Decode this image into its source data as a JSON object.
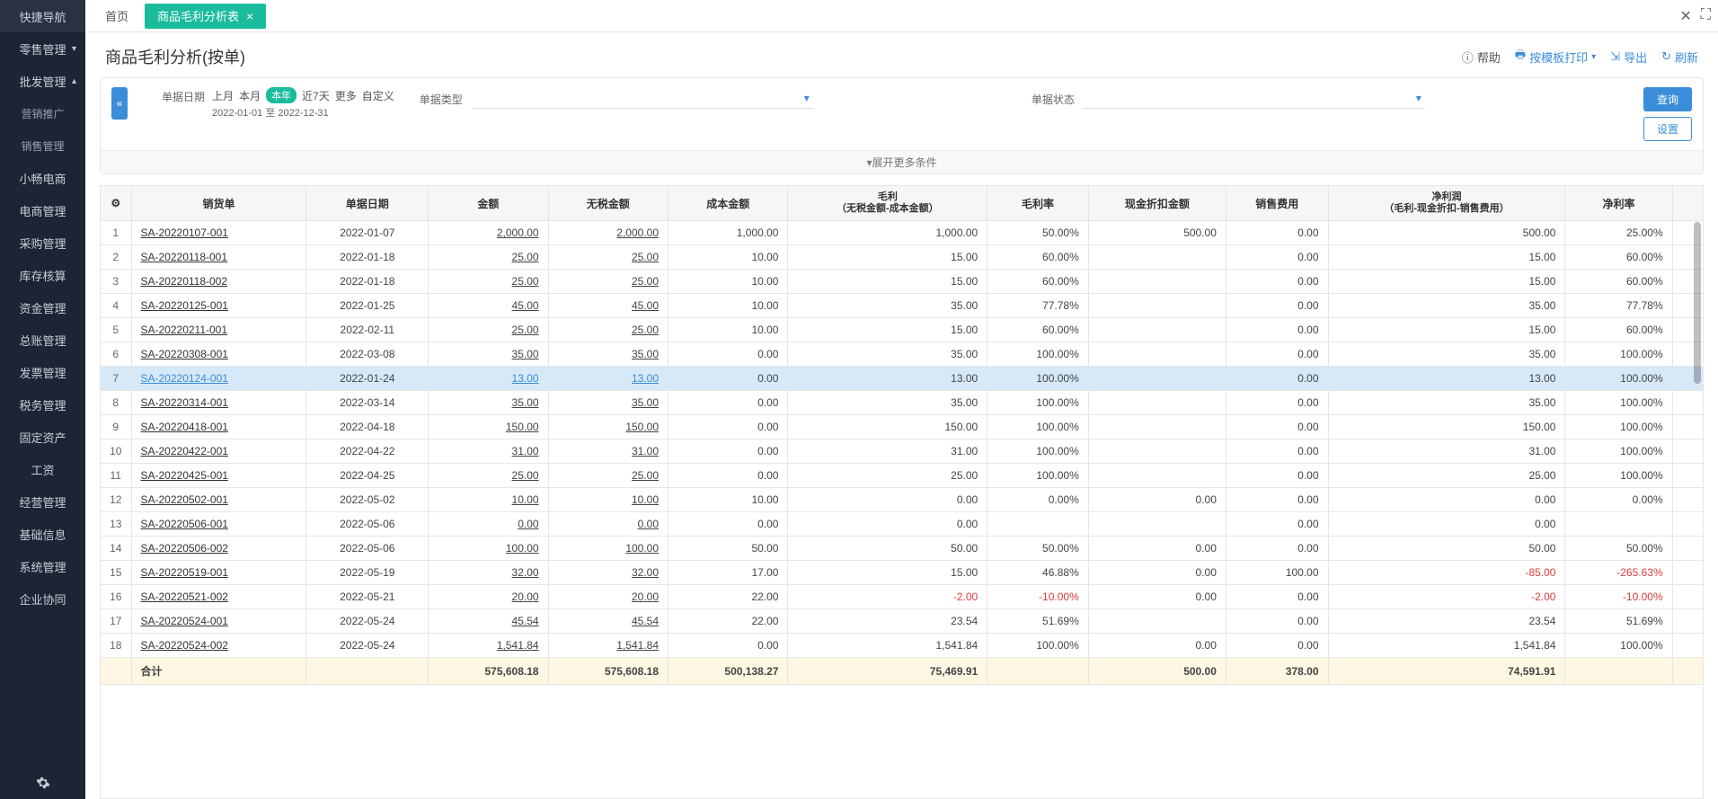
{
  "sidebar": {
    "items": [
      {
        "label": "快捷导航",
        "arrow": false
      },
      {
        "label": "零售管理",
        "arrow": "down"
      },
      {
        "label": "批发管理",
        "arrow": "up",
        "expanded": true,
        "sub": [
          "营销推广",
          "销售管理"
        ]
      },
      {
        "label": "小畅电商",
        "arrow": false
      },
      {
        "label": "电商管理",
        "arrow": false
      },
      {
        "label": "采购管理",
        "arrow": false
      },
      {
        "label": "库存核算",
        "arrow": false
      },
      {
        "label": "资金管理",
        "arrow": false
      },
      {
        "label": "总账管理",
        "arrow": false
      },
      {
        "label": "发票管理",
        "arrow": false
      },
      {
        "label": "税务管理",
        "arrow": false
      },
      {
        "label": "固定资产",
        "arrow": false
      },
      {
        "label": "工资",
        "arrow": false
      },
      {
        "label": "经营管理",
        "arrow": false
      },
      {
        "label": "基础信息",
        "arrow": false
      },
      {
        "label": "系统管理",
        "arrow": false
      },
      {
        "label": "企业协同",
        "arrow": false
      }
    ]
  },
  "tabs": {
    "home": "首页",
    "active": "商品毛利分析表"
  },
  "pageTitle": "商品毛利分析(按单)",
  "actions": {
    "help": "帮助",
    "print": "按模板打印",
    "export": "导出",
    "refresh": "刷新"
  },
  "filters": {
    "dateLabel": "单据日期",
    "dateBtns": [
      "上月",
      "本月",
      "本年",
      "近7天",
      "更多",
      "自定义"
    ],
    "activeBtn": "本年",
    "dateRange": "2022-01-01 至 2022-12-31",
    "typeLabel": "单据类型",
    "statusLabel": "单据状态",
    "search": "查询",
    "settings": "设置",
    "expand": "展开更多条件"
  },
  "table": {
    "columns": [
      "销货单",
      "单据日期",
      "金额",
      "无税金额",
      "成本金额",
      "毛利\n（无税金额-成本金额）",
      "毛利率",
      "现金折扣金额",
      "销售费用",
      "净利润\n（毛利-现金折扣-销售费用）",
      "净利率"
    ],
    "highlightRow": 7,
    "rows": [
      {
        "idx": 1,
        "doc": "SA-20220107-001",
        "date": "2022-01-07",
        "amt": "2,000.00",
        "notax": "2,000.00",
        "cost": "1,000.00",
        "profit": "1,000.00",
        "rate": "50.00%",
        "disc": "500.00",
        "exp": "0.00",
        "net": "500.00",
        "netrate": "25.00%"
      },
      {
        "idx": 2,
        "doc": "SA-20220118-001",
        "date": "2022-01-18",
        "amt": "25.00",
        "notax": "25.00",
        "cost": "10.00",
        "profit": "15.00",
        "rate": "60.00%",
        "disc": "",
        "exp": "0.00",
        "net": "15.00",
        "netrate": "60.00%"
      },
      {
        "idx": 3,
        "doc": "SA-20220118-002",
        "date": "2022-01-18",
        "amt": "25.00",
        "notax": "25.00",
        "cost": "10.00",
        "profit": "15.00",
        "rate": "60.00%",
        "disc": "",
        "exp": "0.00",
        "net": "15.00",
        "netrate": "60.00%"
      },
      {
        "idx": 4,
        "doc": "SA-20220125-001",
        "date": "2022-01-25",
        "amt": "45.00",
        "notax": "45.00",
        "cost": "10.00",
        "profit": "35.00",
        "rate": "77.78%",
        "disc": "",
        "exp": "0.00",
        "net": "35.00",
        "netrate": "77.78%"
      },
      {
        "idx": 5,
        "doc": "SA-20220211-001",
        "date": "2022-02-11",
        "amt": "25.00",
        "notax": "25.00",
        "cost": "10.00",
        "profit": "15.00",
        "rate": "60.00%",
        "disc": "",
        "exp": "0.00",
        "net": "15.00",
        "netrate": "60.00%"
      },
      {
        "idx": 6,
        "doc": "SA-20220308-001",
        "date": "2022-03-08",
        "amt": "35.00",
        "notax": "35.00",
        "cost": "0.00",
        "profit": "35.00",
        "rate": "100.00%",
        "disc": "",
        "exp": "0.00",
        "net": "35.00",
        "netrate": "100.00%"
      },
      {
        "idx": 7,
        "doc": "SA-20220124-001",
        "date": "2022-01-24",
        "amt": "13.00",
        "notax": "13.00",
        "cost": "0.00",
        "profit": "13.00",
        "rate": "100.00%",
        "disc": "",
        "exp": "0.00",
        "net": "13.00",
        "netrate": "100.00%"
      },
      {
        "idx": 8,
        "doc": "SA-20220314-001",
        "date": "2022-03-14",
        "amt": "35.00",
        "notax": "35.00",
        "cost": "0.00",
        "profit": "35.00",
        "rate": "100.00%",
        "disc": "",
        "exp": "0.00",
        "net": "35.00",
        "netrate": "100.00%"
      },
      {
        "idx": 9,
        "doc": "SA-20220418-001",
        "date": "2022-04-18",
        "amt": "150.00",
        "notax": "150.00",
        "cost": "0.00",
        "profit": "150.00",
        "rate": "100.00%",
        "disc": "",
        "exp": "0.00",
        "net": "150.00",
        "netrate": "100.00%"
      },
      {
        "idx": 10,
        "doc": "SA-20220422-001",
        "date": "2022-04-22",
        "amt": "31.00",
        "notax": "31.00",
        "cost": "0.00",
        "profit": "31.00",
        "rate": "100.00%",
        "disc": "",
        "exp": "0.00",
        "net": "31.00",
        "netrate": "100.00%"
      },
      {
        "idx": 11,
        "doc": "SA-20220425-001",
        "date": "2022-04-25",
        "amt": "25.00",
        "notax": "25.00",
        "cost": "0.00",
        "profit": "25.00",
        "rate": "100.00%",
        "disc": "",
        "exp": "0.00",
        "net": "25.00",
        "netrate": "100.00%"
      },
      {
        "idx": 12,
        "doc": "SA-20220502-001",
        "date": "2022-05-02",
        "amt": "10.00",
        "notax": "10.00",
        "cost": "10.00",
        "profit": "0.00",
        "rate": "0.00%",
        "disc": "0.00",
        "exp": "0.00",
        "net": "0.00",
        "netrate": "0.00%"
      },
      {
        "idx": 13,
        "doc": "SA-20220506-001",
        "date": "2022-05-06",
        "amt": "0.00",
        "notax": "0.00",
        "cost": "0.00",
        "profit": "0.00",
        "rate": "",
        "disc": "",
        "exp": "0.00",
        "net": "0.00",
        "netrate": ""
      },
      {
        "idx": 14,
        "doc": "SA-20220506-002",
        "date": "2022-05-06",
        "amt": "100.00",
        "notax": "100.00",
        "cost": "50.00",
        "profit": "50.00",
        "rate": "50.00%",
        "disc": "0.00",
        "exp": "0.00",
        "net": "50.00",
        "netrate": "50.00%"
      },
      {
        "idx": 15,
        "doc": "SA-20220519-001",
        "date": "2022-05-19",
        "amt": "32.00",
        "notax": "32.00",
        "cost": "17.00",
        "profit": "15.00",
        "rate": "46.88%",
        "disc": "0.00",
        "exp": "100.00",
        "net": "-85.00",
        "netrate": "-265.63%",
        "neg": true
      },
      {
        "idx": 16,
        "doc": "SA-20220521-002",
        "date": "2022-05-21",
        "amt": "20.00",
        "notax": "20.00",
        "cost": "22.00",
        "profit": "-2.00",
        "rate": "-10.00%",
        "disc": "0.00",
        "exp": "0.00",
        "net": "-2.00",
        "netrate": "-10.00%",
        "neg": true,
        "profitNeg": true
      },
      {
        "idx": 17,
        "doc": "SA-20220524-001",
        "date": "2022-05-24",
        "amt": "45.54",
        "notax": "45.54",
        "cost": "22.00",
        "profit": "23.54",
        "rate": "51.69%",
        "disc": "",
        "exp": "0.00",
        "net": "23.54",
        "netrate": "51.69%"
      },
      {
        "idx": 18,
        "doc": "SA-20220524-002",
        "date": "2022-05-24",
        "amt": "1,541.84",
        "notax": "1,541.84",
        "cost": "0.00",
        "profit": "1,541.84",
        "rate": "100.00%",
        "disc": "0.00",
        "exp": "0.00",
        "net": "1,541.84",
        "netrate": "100.00%"
      }
    ],
    "total": {
      "label": "合计",
      "amt": "575,608.18",
      "notax": "575,608.18",
      "cost": "500,138.27",
      "profit": "75,469.91",
      "disc": "500.00",
      "exp": "378.00",
      "net": "74,591.91"
    }
  }
}
